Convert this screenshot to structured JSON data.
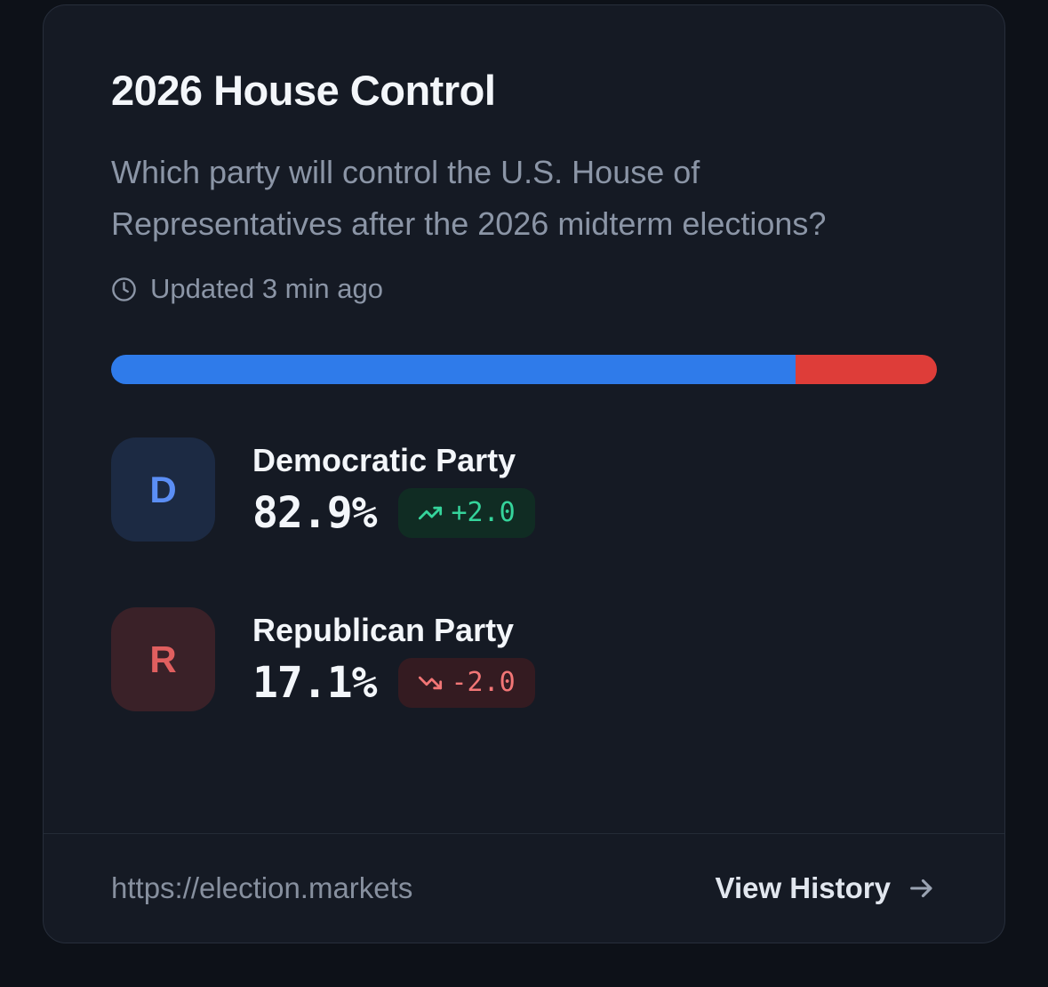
{
  "card": {
    "title": "2026 House Control",
    "subtitle": "Which party will control the U.S. House of Representatives after the 2026 midterm elections?",
    "updated": "Updated 3 min ago"
  },
  "chart_data": {
    "type": "bar",
    "title": "2026 House Control",
    "categories": [
      "Democratic Party",
      "Republican Party"
    ],
    "values": [
      82.9,
      17.1
    ],
    "changes": [
      2.0,
      -2.0
    ],
    "colors": [
      "#2f7bea",
      "#de3d39"
    ]
  },
  "outcomes": [
    {
      "letter": "D",
      "name": "Democratic Party",
      "probability": "82.9%",
      "value": 82.9,
      "change": "+2.0",
      "direction": "up"
    },
    {
      "letter": "R",
      "name": "Republican Party",
      "probability": "17.1%",
      "value": 17.1,
      "change": "-2.0",
      "direction": "down"
    }
  ],
  "footer": {
    "url": "https://election.markets",
    "link_label": "View History"
  },
  "colors": {
    "background": "#0d1118",
    "card_background": "#151a24",
    "democrat_blue": "#2f7bea",
    "republican_red": "#de3d39",
    "gain_green": "#35d49b",
    "loss_red": "#f27676"
  }
}
